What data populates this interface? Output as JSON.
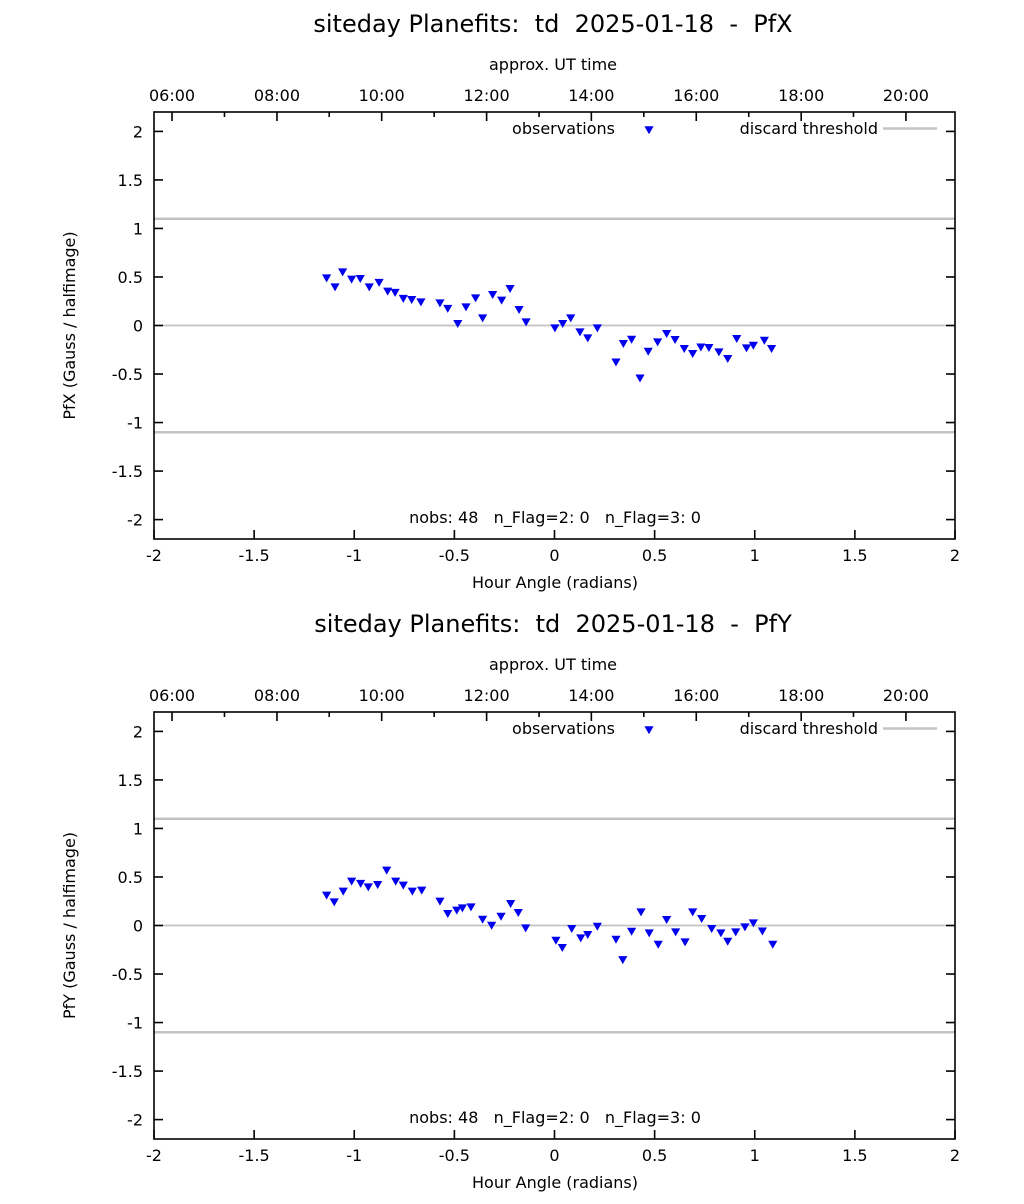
{
  "chart_data": [
    {
      "type": "scatter",
      "title": "siteday Planefits:  td  2025-01-18  -  PfX",
      "x2label": "approx. UT time",
      "xlabel": "Hour Angle (radians)",
      "ylabel": "PfX (Gauss / halfimage)",
      "stats_label": "nobs: 48   n_Flag=2: 0   n_Flag=3: 0",
      "legend": [
        {
          "label": "observations",
          "type": "point"
        },
        {
          "label": "discard threshold",
          "type": "line"
        }
      ],
      "xlim": [
        -2,
        2
      ],
      "ylim": [
        -2.2,
        2.2
      ],
      "xtick_labels": [
        "-2",
        "-1.5",
        "-1",
        "-0.5",
        "0",
        "0.5",
        "1",
        "1.5",
        "2"
      ],
      "xtick_values": [
        -2,
        -1.5,
        -1,
        -0.5,
        0,
        0.5,
        1,
        1.5,
        2
      ],
      "ytick_labels": [
        "2",
        "1.5",
        "1",
        "0.5",
        "0",
        "-0.5",
        "-1",
        "-1.5",
        "-2"
      ],
      "ytick_values": [
        2,
        1.5,
        1,
        0.5,
        0,
        -0.5,
        -1,
        -1.5,
        -2
      ],
      "ut_tick_labels": [
        "06:00",
        "08:00",
        "10:00",
        "12:00",
        "14:00",
        "16:00",
        "18:00",
        "20:00"
      ],
      "ut_tick_values": [
        -1.91,
        -1.386,
        -0.863,
        -0.339,
        0.184,
        0.708,
        1.232,
        1.755
      ],
      "ut_minor_tick_values": [
        -1.648,
        -1.125,
        -0.601,
        -0.077,
        0.446,
        0.97,
        1.493
      ],
      "discard_threshold": [
        1.1,
        -1.1
      ],
      "zero_line": 0,
      "marker": "triangle-down",
      "marker_color": "#0000ee",
      "threshold_color": "#c3c3c3",
      "points": [
        [
          -1.138,
          0.494
        ],
        [
          -1.096,
          0.401
        ],
        [
          -1.058,
          0.556
        ],
        [
          -1.013,
          0.481
        ],
        [
          -0.97,
          0.488
        ],
        [
          -0.925,
          0.401
        ],
        [
          -0.876,
          0.447
        ],
        [
          -0.833,
          0.357
        ],
        [
          -0.796,
          0.344
        ],
        [
          -0.755,
          0.282
        ],
        [
          -0.713,
          0.271
        ],
        [
          -0.667,
          0.247
        ],
        [
          -0.572,
          0.236
        ],
        [
          -0.533,
          0.179
        ],
        [
          -0.483,
          0.024
        ],
        [
          -0.442,
          0.195
        ],
        [
          -0.394,
          0.288
        ],
        [
          -0.359,
          0.082
        ],
        [
          -0.309,
          0.323
        ],
        [
          -0.264,
          0.264
        ],
        [
          -0.222,
          0.385
        ],
        [
          -0.177,
          0.168
        ],
        [
          -0.142,
          0.04
        ],
        [
          0.002,
          -0.022
        ],
        [
          0.041,
          0.024
        ],
        [
          0.081,
          0.082
        ],
        [
          0.127,
          -0.063
        ],
        [
          0.166,
          -0.125
        ],
        [
          0.214,
          -0.022
        ],
        [
          0.307,
          -0.373
        ],
        [
          0.344,
          -0.183
        ],
        [
          0.385,
          -0.138
        ],
        [
          0.427,
          -0.538
        ],
        [
          0.468,
          -0.262
        ],
        [
          0.515,
          -0.166
        ],
        [
          0.56,
          -0.079
        ],
        [
          0.602,
          -0.141
        ],
        [
          0.648,
          -0.234
        ],
        [
          0.69,
          -0.286
        ],
        [
          0.731,
          -0.218
        ],
        [
          0.771,
          -0.224
        ],
        [
          0.821,
          -0.269
        ],
        [
          0.865,
          -0.337
        ],
        [
          0.91,
          -0.131
        ],
        [
          0.959,
          -0.228
        ],
        [
          0.993,
          -0.2
        ],
        [
          1.048,
          -0.149
        ],
        [
          1.084,
          -0.234
        ]
      ]
    },
    {
      "type": "scatter",
      "title": "siteday Planefits:  td  2025-01-18  -  PfY",
      "x2label": "approx. UT time",
      "xlabel": "Hour Angle (radians)",
      "ylabel": "PfY (Gauss / halfimage)",
      "stats_label": "nobs: 48   n_Flag=2: 0   n_Flag=3: 0",
      "legend": [
        {
          "label": "observations",
          "type": "point"
        },
        {
          "label": "discard threshold",
          "type": "line"
        }
      ],
      "xlim": [
        -2,
        2
      ],
      "ylim": [
        -2.2,
        2.2
      ],
      "xtick_labels": [
        "-2",
        "-1.5",
        "-1",
        "-0.5",
        "0",
        "0.5",
        "1",
        "1.5",
        "2"
      ],
      "xtick_values": [
        -2,
        -1.5,
        -1,
        -0.5,
        0,
        0.5,
        1,
        1.5,
        2
      ],
      "ytick_labels": [
        "2",
        "1.5",
        "1",
        "0.5",
        "0",
        "-0.5",
        "-1",
        "-1.5",
        "-2"
      ],
      "ytick_values": [
        2,
        1.5,
        1,
        0.5,
        0,
        -0.5,
        -1,
        -1.5,
        -2
      ],
      "ut_tick_labels": [
        "06:00",
        "08:00",
        "10:00",
        "12:00",
        "14:00",
        "16:00",
        "18:00",
        "20:00"
      ],
      "ut_tick_values": [
        -1.91,
        -1.386,
        -0.863,
        -0.339,
        0.184,
        0.708,
        1.232,
        1.755
      ],
      "ut_minor_tick_values": [
        -1.648,
        -1.125,
        -0.601,
        -0.077,
        0.446,
        0.97,
        1.493
      ],
      "discard_threshold": [
        1.1,
        -1.1
      ],
      "zero_line": 0,
      "marker": "triangle-down",
      "marker_color": "#0000ee",
      "threshold_color": "#c3c3c3",
      "points": [
        [
          -1.138,
          0.316
        ],
        [
          -1.1,
          0.247
        ],
        [
          -1.055,
          0.357
        ],
        [
          -1.013,
          0.46
        ],
        [
          -0.968,
          0.437
        ],
        [
          -0.93,
          0.401
        ],
        [
          -0.883,
          0.426
        ],
        [
          -0.838,
          0.574
        ],
        [
          -0.793,
          0.46
        ],
        [
          -0.755,
          0.419
        ],
        [
          -0.71,
          0.357
        ],
        [
          -0.663,
          0.367
        ],
        [
          -0.572,
          0.254
        ],
        [
          -0.533,
          0.127
        ],
        [
          -0.488,
          0.161
        ],
        [
          -0.46,
          0.185
        ],
        [
          -0.417,
          0.195
        ],
        [
          -0.359,
          0.068
        ],
        [
          -0.314,
          0.006
        ],
        [
          -0.267,
          0.099
        ],
        [
          -0.219,
          0.23
        ],
        [
          -0.181,
          0.137
        ],
        [
          -0.144,
          -0.022
        ],
        [
          0.007,
          -0.149
        ],
        [
          0.039,
          -0.224
        ],
        [
          0.086,
          -0.028
        ],
        [
          0.131,
          -0.125
        ],
        [
          0.166,
          -0.09
        ],
        [
          0.214,
          -0.004
        ],
        [
          0.307,
          -0.138
        ],
        [
          0.341,
          -0.348
        ],
        [
          0.385,
          -0.056
        ],
        [
          0.432,
          0.143
        ],
        [
          0.473,
          -0.073
        ],
        [
          0.518,
          -0.19
        ],
        [
          0.56,
          0.065
        ],
        [
          0.605,
          -0.063
        ],
        [
          0.652,
          -0.166
        ],
        [
          0.69,
          0.143
        ],
        [
          0.735,
          0.075
        ],
        [
          0.785,
          -0.028
        ],
        [
          0.831,
          -0.073
        ],
        [
          0.865,
          -0.159
        ],
        [
          0.905,
          -0.063
        ],
        [
          0.951,
          -0.011
        ],
        [
          0.993,
          0.03
        ],
        [
          1.038,
          -0.053
        ],
        [
          1.09,
          -0.19
        ]
      ]
    }
  ]
}
